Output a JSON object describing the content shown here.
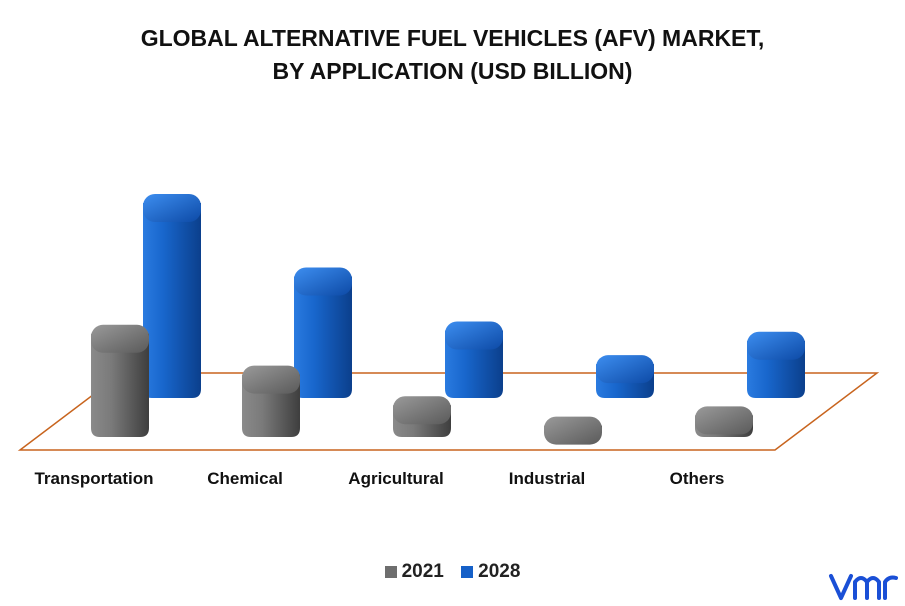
{
  "chart_data": {
    "type": "bar",
    "title_lines": [
      "GLOBAL ALTERNATIVE FUEL VEHICLES (AFV) MARKET,",
      "BY APPLICATION (USD BILLION)"
    ],
    "categories": [
      "Transportation",
      "Chemical",
      "Agricultural",
      "Industrial",
      "Others"
    ],
    "series": [
      {
        "name": "2021",
        "values": [
          110,
          70,
          40,
          20,
          30
        ],
        "color": "#6e6e6e"
      },
      {
        "name": "2028",
        "values": [
          200,
          128,
          75,
          42,
          65
        ],
        "color": "#1560c8"
      }
    ],
    "ylim": [
      0,
      220
    ],
    "legend_position": "bottom",
    "style": "3d-cylinder-bars"
  },
  "brand": {
    "logo_icon": "vmr-logo-icon",
    "logo_color": "#1a4fd6"
  }
}
